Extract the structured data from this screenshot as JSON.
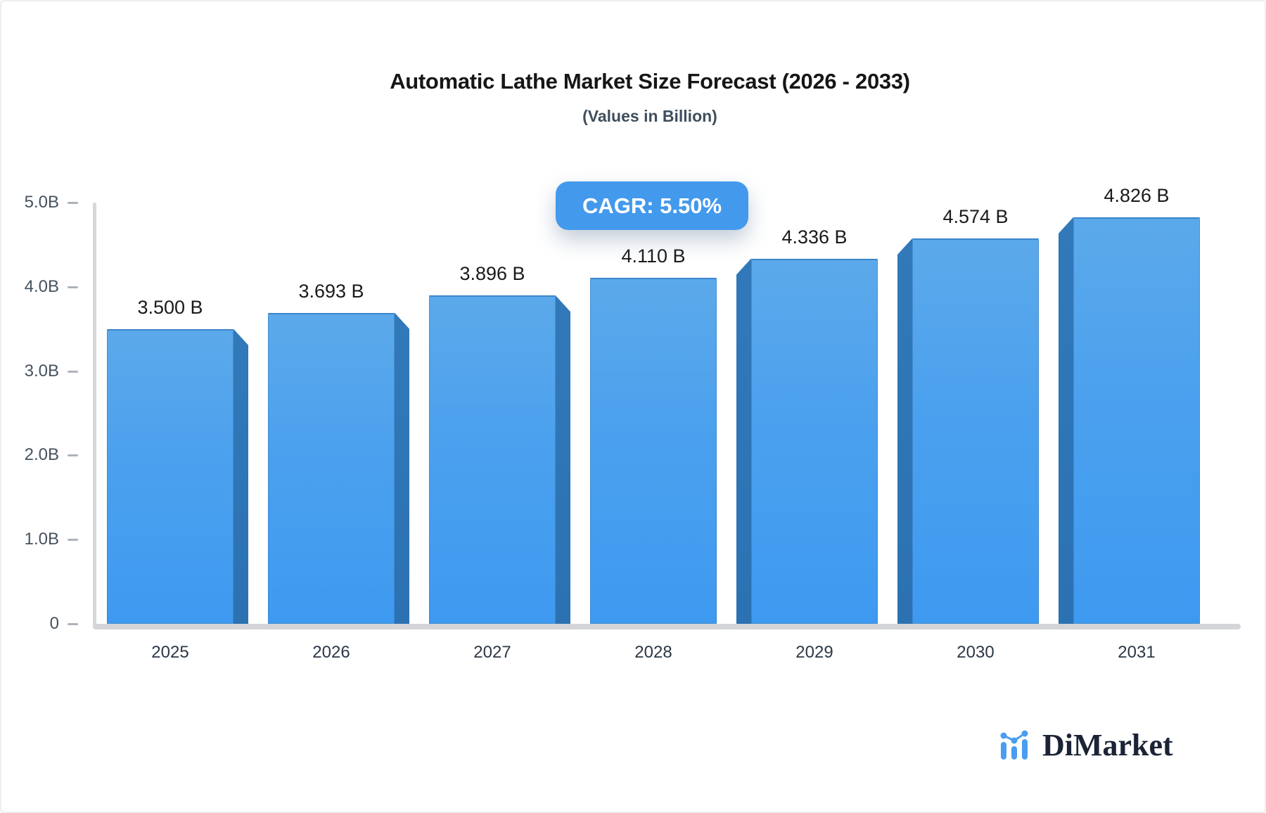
{
  "header": {
    "title": "Automatic Lathe Market Size Forecast (2026 - 2033)",
    "subtitle": "(Values in Billion)"
  },
  "badge": {
    "label": "CAGR: 5.50%",
    "bg_color": "#4399ec",
    "text_color": "#ffffff"
  },
  "chart_data": {
    "type": "bar",
    "title": "Automatic Lathe Market Size Forecast (2026 - 2033)",
    "subtitle": "(Values in Billion)",
    "categories": [
      "2025",
      "2026",
      "2027",
      "2028",
      "2029",
      "2030",
      "2031"
    ],
    "values": [
      3.5,
      3.693,
      3.896,
      4.11,
      4.336,
      4.574,
      4.826
    ],
    "bar_labels": [
      "3.500 B",
      "3.693 B",
      "3.896 B",
      "4.110 B",
      "4.336 B",
      "4.574 B",
      "4.826 B"
    ],
    "xlabel": "",
    "ylabel": "",
    "ylim": [
      0,
      5
    ],
    "ytick_values": [
      5,
      4,
      3,
      2,
      1,
      0
    ],
    "ytick_labels": [
      "5.0B",
      "4.0B",
      "3.0B",
      "2.0B",
      "1.0B",
      "0"
    ],
    "grid": "off",
    "legend": "none",
    "annotation": "CAGR: 5.50%",
    "bar_color_top": "#5ba9ea",
    "bar_color_bottom": "#3e9af0",
    "bar_side_color": "#2c72b2",
    "axis_color": "#d5d7da"
  },
  "logo": {
    "text": "DiMarket",
    "icon": "bar-line-chart-icon",
    "text_color": "#1b2436",
    "accent_color": "#4a9df0"
  }
}
